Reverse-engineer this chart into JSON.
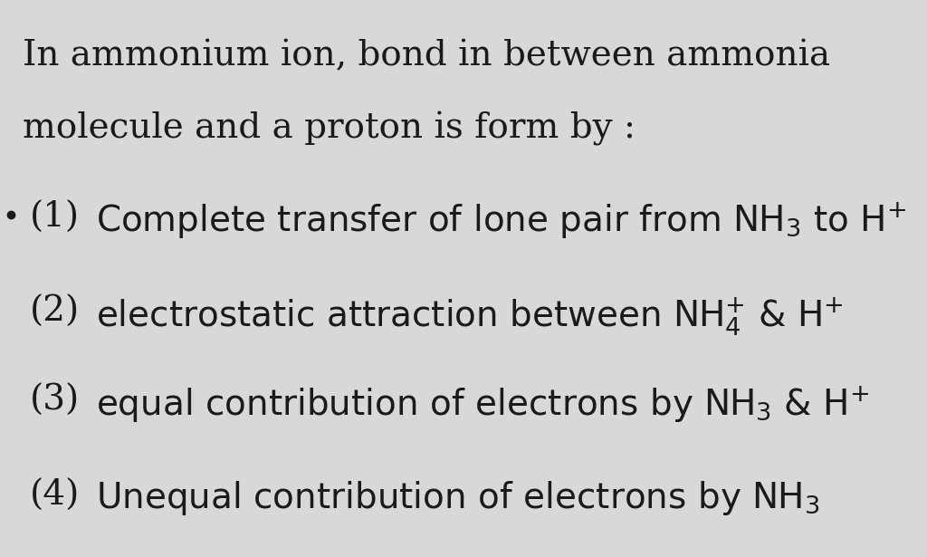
{
  "background_color": "#d8d8d8",
  "title_line1": "In ammonium ion, bond in between ammonia",
  "title_line2": "molecule and a proton is form by :",
  "options": [
    {
      "number": "(1)",
      "text_parts": [
        {
          "text": "Complete transfer of lone pair from NH",
          "style": "normal"
        },
        {
          "text": "3",
          "style": "sub"
        },
        {
          "text": " to H",
          "style": "normal"
        },
        {
          "text": "+",
          "style": "super"
        }
      ],
      "bullet": true
    },
    {
      "number": "(2)",
      "text_parts": [
        {
          "text": "electrostatic attraction between NH",
          "style": "normal"
        },
        {
          "text": "4",
          "style": "sub"
        },
        {
          "text": "+",
          "style": "super_after_sub"
        },
        {
          "text": " & H",
          "style": "normal"
        },
        {
          "text": "+",
          "style": "super"
        }
      ],
      "bullet": false
    },
    {
      "number": "(3)",
      "text_parts": [
        {
          "text": "equal contribution of electrons by NH",
          "style": "normal"
        },
        {
          "text": "3",
          "style": "sub"
        },
        {
          "text": " & H",
          "style": "normal"
        },
        {
          "text": "+",
          "style": "super"
        }
      ],
      "bullet": false
    },
    {
      "number": "(4)",
      "text_parts": [
        {
          "text": "Unequal contribution of electrons by NH",
          "style": "normal"
        },
        {
          "text": "3",
          "style": "sub"
        }
      ],
      "bullet": false
    }
  ],
  "font_size_title": 28,
  "font_size_option": 28,
  "text_color": "#1a1a1a"
}
